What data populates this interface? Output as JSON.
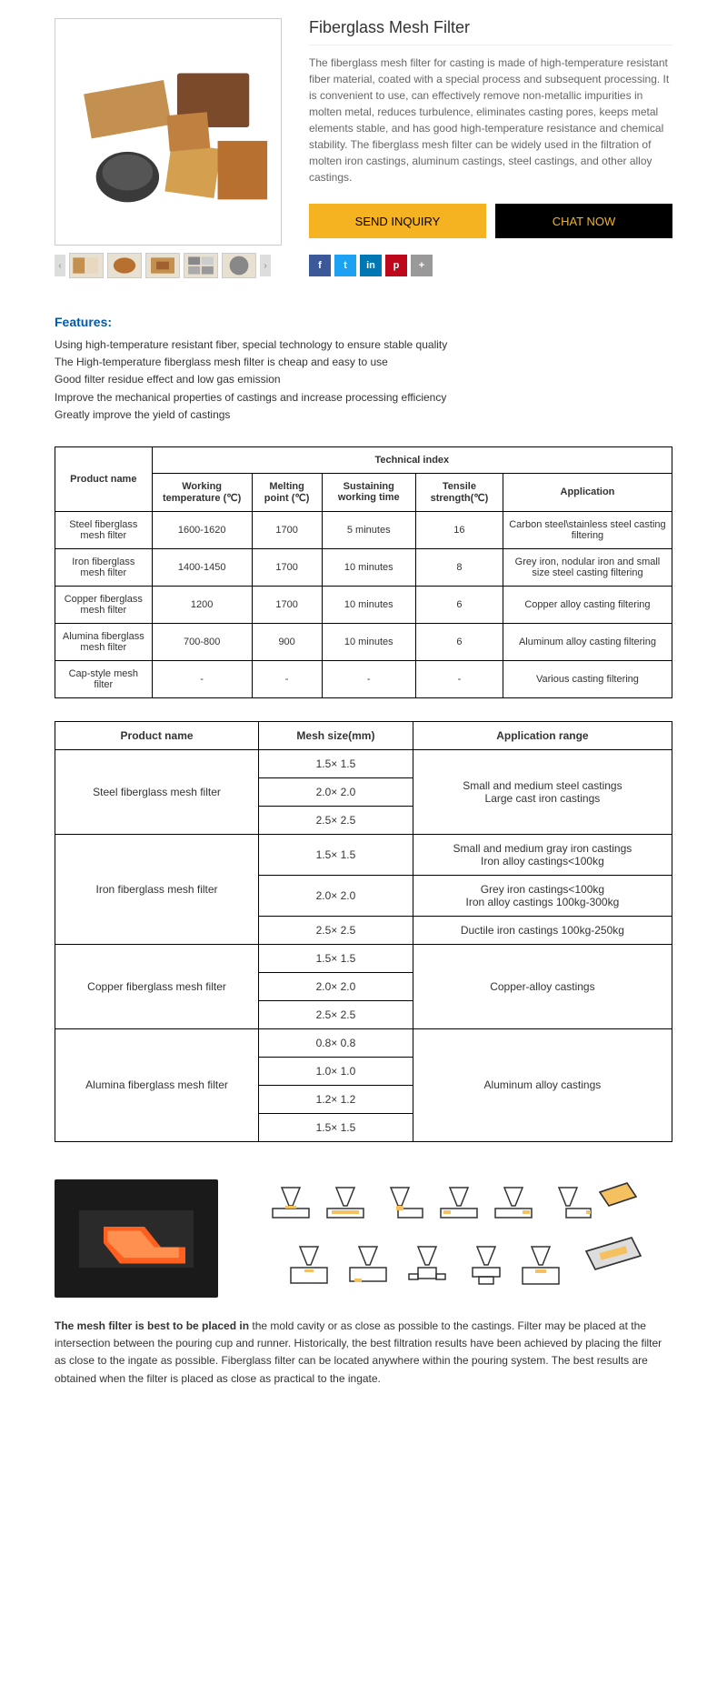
{
  "title": "Fiberglass Mesh Filter",
  "description": "The fiberglass mesh filter for casting is made of high-temperature resistant fiber material, coated with a special process and subsequent processing. It is convenient to use, can effectively remove non-metallic impurities in molten metal, reduces turbulence, eliminates casting pores, keeps metal elements stable, and has good high-temperature resistance and chemical stability. The fiberglass mesh filter can be widely used in the filtration of molten iron castings, aluminum castings, steel castings, and other alloy castings.",
  "btn_inquiry": "SEND INQUIRY",
  "btn_chat": "CHAT NOW",
  "features_heading": "Features:",
  "features": [
    "Using high-temperature resistant fiber, special technology to ensure stable quality",
    "The High-temperature fiberglass mesh filter is cheap and easy to use",
    "Good filter residue effect and low gas emission",
    "Improve the mechanical properties of castings and increase processing efficiency",
    "Greatly improve the yield of castings"
  ],
  "table1": {
    "h_product": "Product name",
    "h_technical": "Technical index",
    "h_working": "Working temperature (℃)",
    "h_melting": "Melting point (℃)",
    "h_sustaining": "Sustaining working time",
    "h_tensile": "Tensile strength(℃)",
    "h_application": "Application",
    "rows": [
      {
        "name": "Steel fiberglass mesh filter",
        "wt": "1600-1620",
        "mp": "1700",
        "sw": "5 minutes",
        "ts": "16",
        "app": "Carbon steel\\stainless steel casting filtering"
      },
      {
        "name": "Iron fiberglass mesh filter",
        "wt": "1400-1450",
        "mp": "1700",
        "sw": "10 minutes",
        "ts": "8",
        "app": "Grey iron, nodular iron and small size steel casting filtering"
      },
      {
        "name": "Copper fiberglass mesh filter",
        "wt": "1200",
        "mp": "1700",
        "sw": "10 minutes",
        "ts": "6",
        "app": "Copper alloy casting filtering"
      },
      {
        "name": "Alumina fiberglass mesh filter",
        "wt": "700-800",
        "mp": "900",
        "sw": "10 minutes",
        "ts": "6",
        "app": "Aluminum alloy casting filtering"
      },
      {
        "name": "Cap-style mesh filter",
        "wt": "-",
        "mp": "-",
        "sw": "-",
        "ts": "-",
        "app": "Various casting filtering"
      }
    ]
  },
  "table2": {
    "h_product": "Product name",
    "h_mesh": "Mesh size(mm)",
    "h_range": "Application range",
    "groups": [
      {
        "name": "Steel fiberglass mesh filter",
        "sizes": [
          "1.5× 1.5",
          "2.0× 2.0",
          "2.5× 2.5"
        ],
        "ranges": [
          "Small and medium steel castings\nLarge cast iron castings"
        ]
      },
      {
        "name": "Iron fiberglass mesh filter",
        "sizes": [
          "1.5× 1.5",
          "2.0× 2.0",
          "2.5× 2.5"
        ],
        "ranges": [
          "Small and medium gray iron castings\nIron alloy castings<100kg",
          "Grey iron castings<100kg\nIron alloy castings 100kg-300kg",
          "Ductile iron castings 100kg-250kg"
        ]
      },
      {
        "name": "Copper fiberglass mesh filter",
        "sizes": [
          "1.5× 1.5",
          "2.0× 2.0",
          "2.5× 2.5"
        ],
        "ranges": [
          "Copper-alloy castings"
        ]
      },
      {
        "name": "Alumina fiberglass mesh filter",
        "sizes": [
          "0.8× 0.8",
          "1.0× 1.0",
          "1.2× 1.2",
          "1.5× 1.5"
        ],
        "ranges": [
          "Aluminum alloy castings"
        ]
      }
    ]
  },
  "bottom_bold": "The mesh filter is best to be placed in",
  "bottom_rest": " the mold cavity or as close as possible to the castings. Filter may be placed at the intersection between the pouring cup and runner. Historically, the best filtration results have been achieved by placing the filter as close to the ingate as possible. Fiberglass filter can be located anywhere within the pouring system. The best results are obtained when the filter is placed as close as practical to the ingate.",
  "colors": {
    "inquiry_bg": "#f5b321",
    "chat_bg": "#000000",
    "feature_heading": "#005aaa"
  }
}
